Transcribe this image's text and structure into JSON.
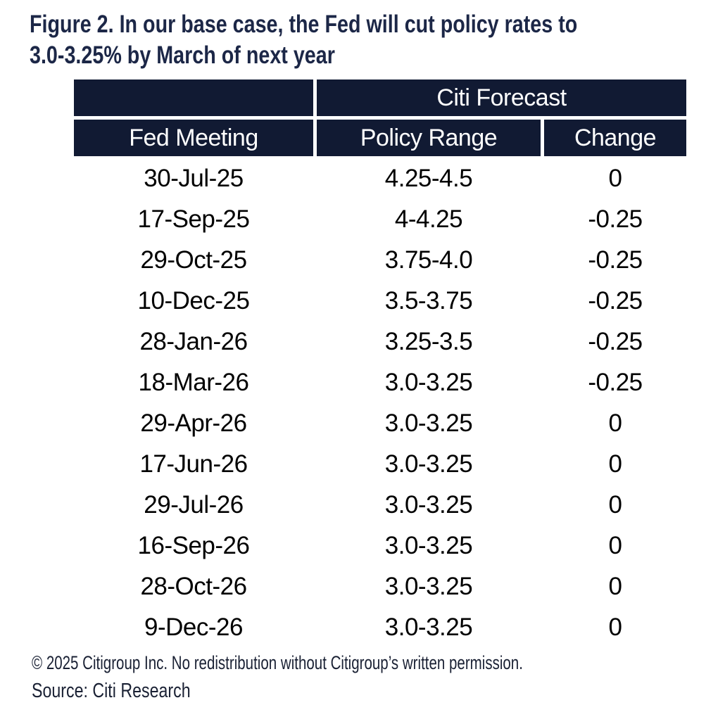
{
  "header": {
    "title_line1": "Figure 2. In our base case, the Fed will cut policy rates to",
    "title_line2": "3.0-3.25% by March of next year"
  },
  "footer": {
    "copyright": "© 2025 Citigroup Inc. No redistribution without Citigroup’s written permission.",
    "source": "Source: Citi Research"
  },
  "colors": {
    "header_bg": "#111a33",
    "header_text": "#ffffff",
    "title_text": "#1c2747",
    "body_text": "#000000",
    "footer_text": "#1a2134"
  },
  "chart_data": {
    "type": "table",
    "title": "Figure 2. In our base case, the Fed will cut policy rates to 3.0-3.25% by March of next year",
    "group_header": "Citi Forecast",
    "columns": [
      "Fed Meeting",
      "Policy Range",
      "Change"
    ],
    "rows": [
      [
        "30-Jul-25",
        "4.25-4.5",
        "0"
      ],
      [
        "17-Sep-25",
        "4-4.25",
        "-0.25"
      ],
      [
        "29-Oct-25",
        "3.75-4.0",
        "-0.25"
      ],
      [
        "10-Dec-25",
        "3.5-3.75",
        "-0.25"
      ],
      [
        "28-Jan-26",
        "3.25-3.5",
        "-0.25"
      ],
      [
        "18-Mar-26",
        "3.0-3.25",
        "-0.25"
      ],
      [
        "29-Apr-26",
        "3.0-3.25",
        "0"
      ],
      [
        "17-Jun-26",
        "3.0-3.25",
        "0"
      ],
      [
        "29-Jul-26",
        "3.0-3.25",
        "0"
      ],
      [
        "16-Sep-26",
        "3.0-3.25",
        "0"
      ],
      [
        "28-Oct-26",
        "3.0-3.25",
        "0"
      ],
      [
        "9-Dec-26",
        "3.0-3.25",
        "0"
      ]
    ],
    "source": "Source: Citi Research"
  }
}
